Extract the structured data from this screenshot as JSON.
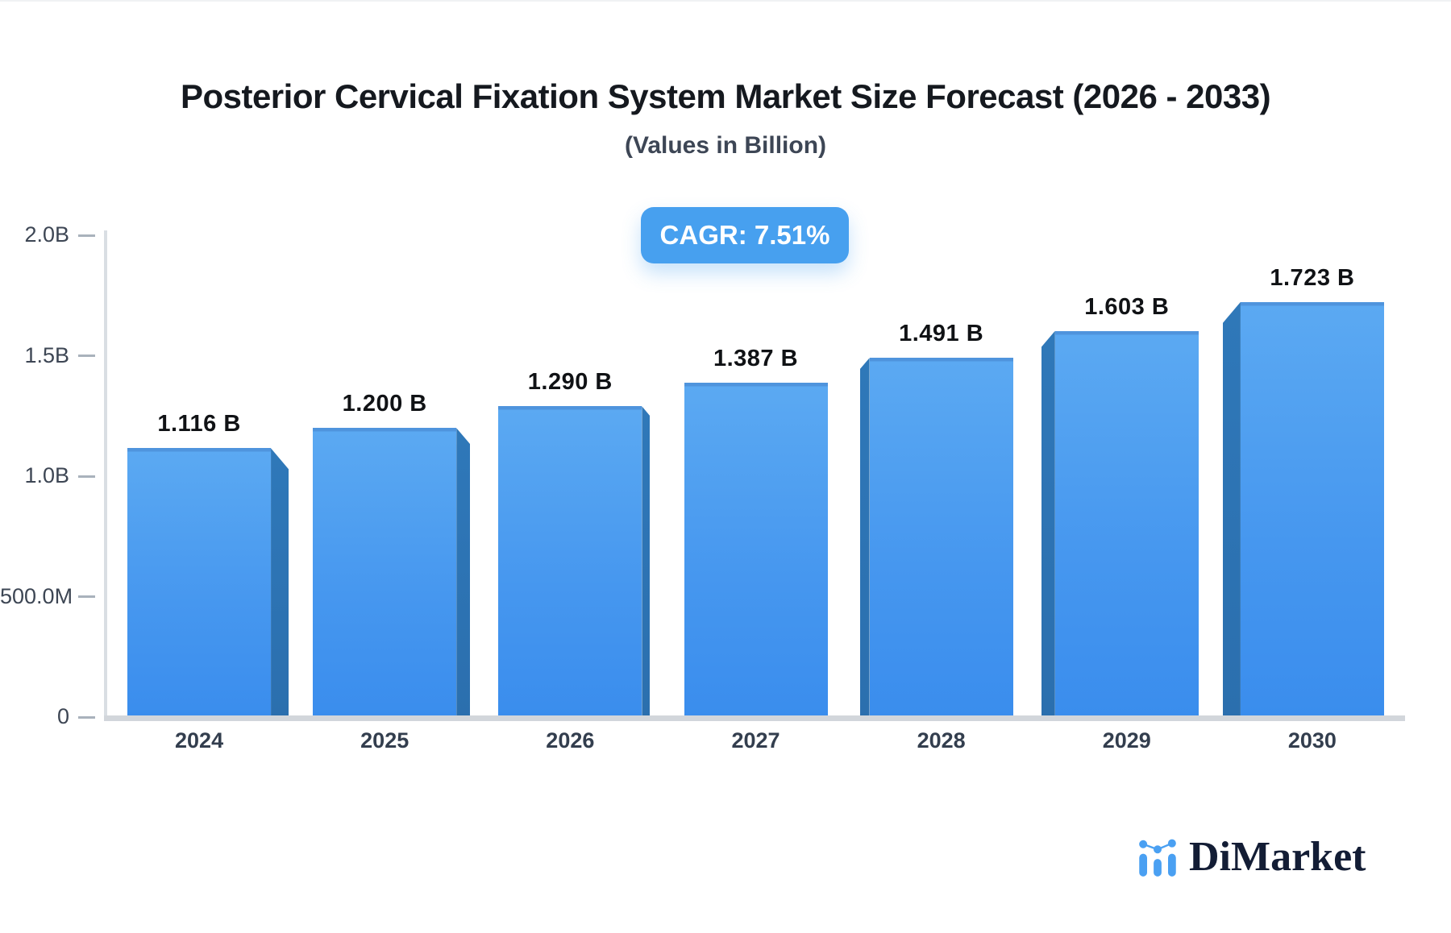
{
  "header": {
    "title": "Posterior Cervical Fixation System Market Size Forecast (2026 - 2033)",
    "subtitle": "(Values in Billion)",
    "cagr_badge": "CAGR: 7.51%"
  },
  "chart_data": {
    "type": "bar",
    "title": "Posterior Cervical Fixation System Market Size Forecast (2026 - 2033)",
    "subtitle": "(Values in Billion)",
    "xlabel": "",
    "ylabel": "",
    "categories": [
      "2024",
      "2025",
      "2026",
      "2027",
      "2028",
      "2029",
      "2030"
    ],
    "values": [
      1.116,
      1.2,
      1.29,
      1.387,
      1.491,
      1.603,
      1.723
    ],
    "value_labels": [
      "1.116 B",
      "1.200 B",
      "1.290 B",
      "1.387 B",
      "1.491 B",
      "1.603 B",
      "1.723 B"
    ],
    "unit": "Billion",
    "ylim": [
      0,
      2.0
    ],
    "yticks": [
      {
        "value": 2.0,
        "label": "2.0B"
      },
      {
        "value": 1.5,
        "label": "1.5B"
      },
      {
        "value": 1.0,
        "label": "1.0B"
      },
      {
        "value": 0.5,
        "label": "500.0M"
      },
      {
        "value": 0.0,
        "label": "0"
      }
    ],
    "cagr_percent": "7.51%",
    "grid": false,
    "legend_position": "none",
    "style": "3d-columns, central vanishing point",
    "colors": {
      "bar_face_top": "#5ba9f2",
      "bar_face_bottom": "#3a8ded",
      "bar_side": "#2d73b3",
      "badge_bg": "#47a0ef",
      "axis_line": "#d9dee3",
      "baseline": "#d2d6db",
      "tick_dash": "#a9b2bc",
      "tick_label": "#3d4654",
      "value_label": "#101215",
      "title": "#15191f",
      "subtitle": "#3d4655"
    }
  },
  "branding": {
    "name": "DiMarket",
    "icon": "bar-chart-logo-icon",
    "icon_color": "#4aa0f2",
    "text_color": "#131d35"
  }
}
